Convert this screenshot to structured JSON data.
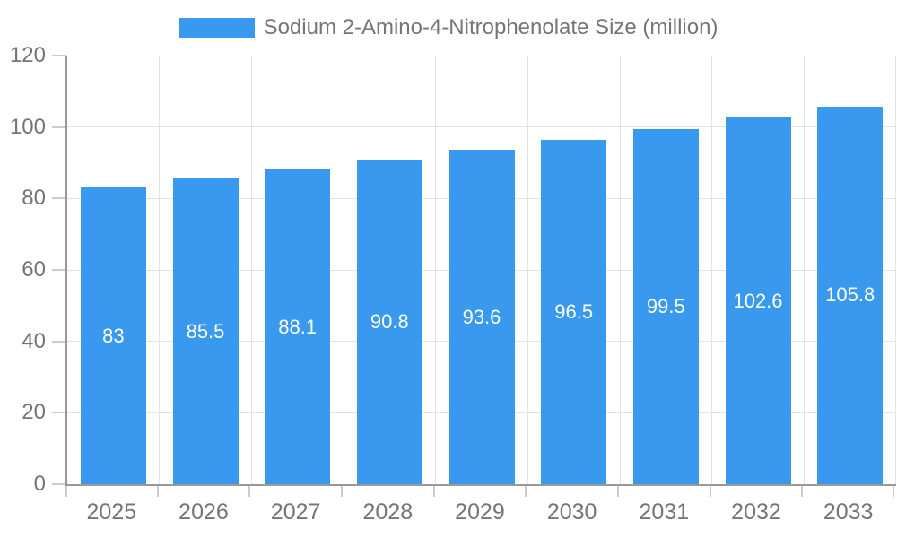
{
  "legend": {
    "label": "Sodium 2-Amino-4-Nitrophenolate Size (million)"
  },
  "colors": {
    "bar": "#3999ee",
    "axis_line": "#999999",
    "grid_line": "#e3e3e3",
    "tick_mark": "#cccccc",
    "axis_label": "#757575",
    "bar_label": "#ffffff",
    "background": "#ffffff"
  },
  "chart_data": {
    "type": "bar",
    "title": "",
    "legend": "Sodium 2-Amino-4-Nitrophenolate Size (million)",
    "legend_position": "top-center",
    "categories": [
      "2025",
      "2026",
      "2027",
      "2028",
      "2029",
      "2030",
      "2031",
      "2032",
      "2033"
    ],
    "values": [
      83,
      85.5,
      88.1,
      90.8,
      93.6,
      96.5,
      99.5,
      102.6,
      105.8
    ],
    "value_labels": [
      "83",
      "85.5",
      "88.1",
      "90.8",
      "93.6",
      "96.5",
      "99.5",
      "102.6",
      "105.8"
    ],
    "xlabel": "",
    "ylabel": "",
    "ylim": [
      0,
      120
    ],
    "yticks": [
      0,
      20,
      40,
      60,
      80,
      100,
      120
    ],
    "grid": true
  }
}
